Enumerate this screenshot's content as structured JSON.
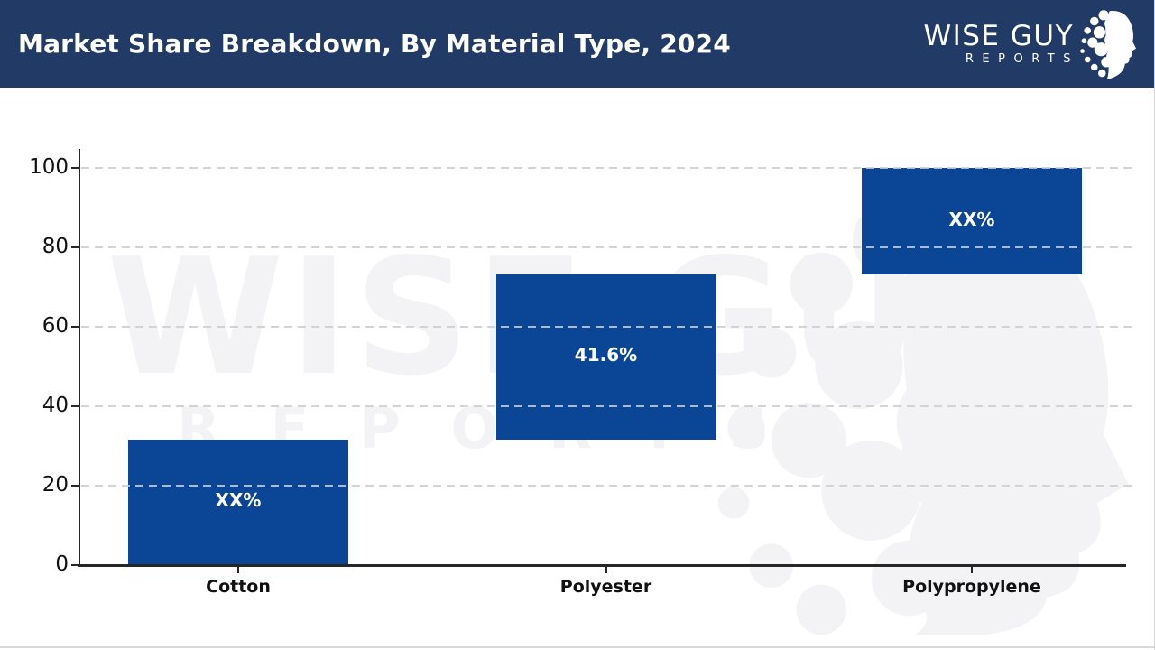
{
  "header": {
    "title": "Market Share Breakdown, By Material Type, 2024",
    "logo": {
      "line1": "WISE GUY",
      "line2": "REPORTS"
    }
  },
  "watermark": {
    "line1": "WISE GUY",
    "line2": "REPORTS"
  },
  "colors": {
    "header_bg": "#213a66",
    "bar": "#0b4696",
    "axis": "#262626",
    "grid": "#d9d9d9",
    "tick_text": "#111111",
    "label_on_bar": "#ffffff",
    "watermark": "#f3f3f5"
  },
  "chart_data": {
    "type": "bar",
    "subtype": "floating-waterfall",
    "title": "Market Share Breakdown, By Material Type, 2024",
    "categories": [
      "Cotton",
      "Polyester",
      "Polypropylene"
    ],
    "segments": [
      {
        "category": "Cotton",
        "start": 0,
        "end": 31.6,
        "label": "XX%",
        "estimated_value": 31.6
      },
      {
        "category": "Polyester",
        "start": 31.6,
        "end": 73.2,
        "label": "41.6%",
        "estimated_value": 41.6
      },
      {
        "category": "Polypropylene",
        "start": 73.2,
        "end": 100,
        "label": "XX%",
        "estimated_value": 26.8
      }
    ],
    "yticks": [
      0,
      20,
      40,
      60,
      80,
      100
    ],
    "ylim": [
      0,
      105
    ],
    "xlabel": "",
    "ylabel": "",
    "legend": "none",
    "grid": "horizontal-dashed"
  }
}
